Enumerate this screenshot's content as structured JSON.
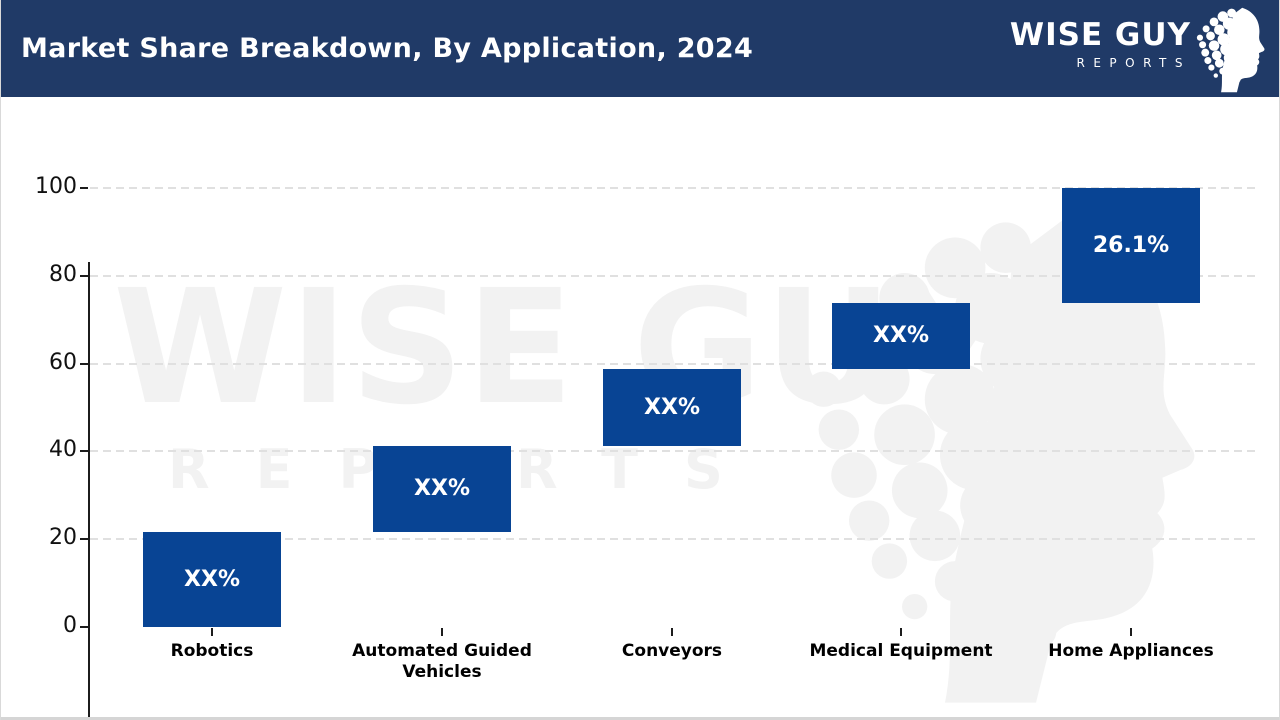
{
  "header": {
    "title": "Market Share Breakdown, By Application, 2024",
    "logo_line1": "WISE GUY",
    "logo_line2": "REPORTS"
  },
  "watermark": {
    "line1": "WISE GUY",
    "line2": "REPORTS"
  },
  "chart_data": {
    "type": "bar",
    "subtype": "floating-waterfall",
    "title": "Market Share Breakdown, By Application, 2024",
    "categories": [
      "Robotics",
      "Automated Guided Vehicles",
      "Conveyors",
      "Medical Equipment",
      "Home Appliances"
    ],
    "series": [
      {
        "name": "Market share (%)",
        "segments": [
          {
            "category": "Robotics",
            "start": 0,
            "end": 21.7,
            "label": "XX%"
          },
          {
            "category": "Automated Guided Vehicles",
            "start": 21.7,
            "end": 41.3,
            "label": "XX%"
          },
          {
            "category": "Conveyors",
            "start": 41.3,
            "end": 58.8,
            "label": "XX%"
          },
          {
            "category": "Medical Equipment",
            "start": 58.8,
            "end": 73.9,
            "label": "XX%"
          },
          {
            "category": "Home Appliances",
            "start": 73.9,
            "end": 100,
            "label": "26.1%"
          }
        ]
      }
    ],
    "yticks": [
      0,
      20,
      40,
      60,
      80,
      100
    ],
    "ylim": [
      0,
      105
    ],
    "xlabel": "",
    "ylabel": "",
    "grid": "horizontal-dashed",
    "legend": "none",
    "bar_color": "#084494",
    "bar_label_color": "#ffffff"
  }
}
